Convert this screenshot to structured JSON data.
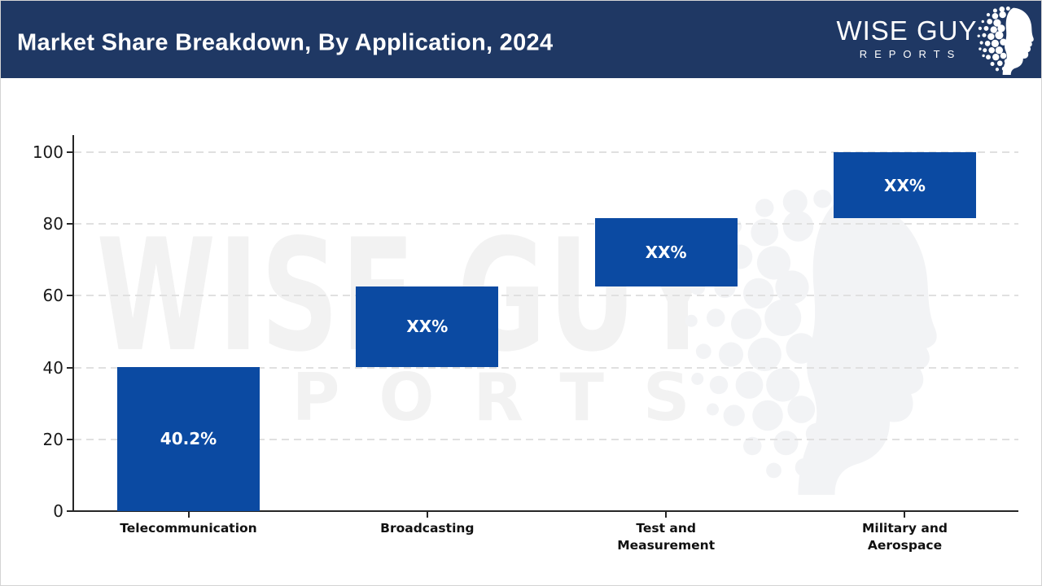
{
  "header": {
    "title": "Market Share Breakdown, By Application, 2024",
    "brand_name": "WISE GUY",
    "brand_sub": "REPORTS"
  },
  "watermark": {
    "line1": "WISE GUY",
    "line2": "REPORTS"
  },
  "chart_data": {
    "type": "bar",
    "subtype": "waterfall",
    "title": "Market Share Breakdown, By Application, 2024",
    "categories": [
      "Telecommunication",
      "Broadcasting",
      "Test and Measurement",
      "Military and Aerospace"
    ],
    "category_label_lines": [
      [
        "Telecommunication"
      ],
      [
        "Broadcasting"
      ],
      [
        "Test and",
        "Measurement"
      ],
      [
        "Military and",
        "Aerospace"
      ]
    ],
    "segments": [
      {
        "category": "Telecommunication",
        "start": 0,
        "end": 40.2,
        "label": "40.2%"
      },
      {
        "category": "Broadcasting",
        "start": 40.2,
        "end": 62.6,
        "label": "XX%"
      },
      {
        "category": "Test and Measurement",
        "start": 62.6,
        "end": 81.6,
        "label": "XX%"
      },
      {
        "category": "Military and Aerospace",
        "start": 81.6,
        "end": 100,
        "label": "XX%"
      }
    ],
    "xlabel": "",
    "ylabel": "",
    "ylim": [
      0,
      100
    ],
    "yticks": [
      0,
      20,
      40,
      60,
      80,
      100
    ],
    "grid": "horizontal-dashed",
    "legend": "none",
    "colors": {
      "bar": "#0b4aa2",
      "bar_label": "#ffffff",
      "header_bg": "#1f3864",
      "axis": "#262626",
      "gridline": "#e0e0e0",
      "watermark": "#f2f3f5"
    }
  }
}
